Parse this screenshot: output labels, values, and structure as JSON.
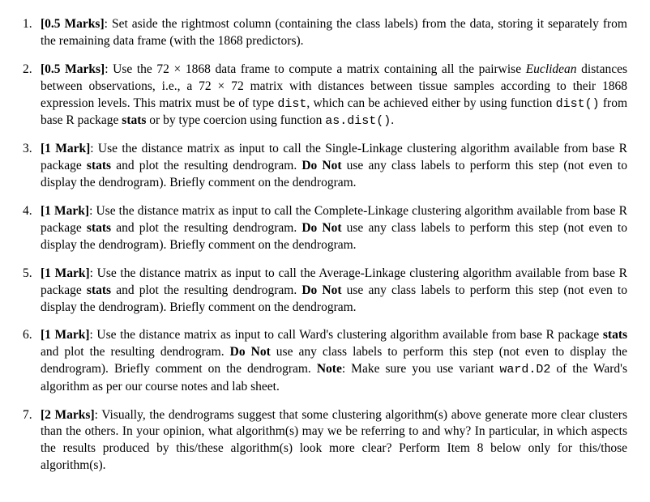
{
  "items": [
    {
      "marks": "[0.5 Marks]",
      "body": ": Set aside the rightmost column (containing the class labels) from the data, storing it separately from the remaining data frame (with the 1868 predictors)."
    },
    {
      "marks": "[0.5 Marks]",
      "pre": ": Use the 72 × 1868 data frame to compute a matrix containing all the pairwise ",
      "ital": "Euclidean",
      "mid": " distances between observations, i.e., a 72 × 72 matrix with distances between tissue samples according to their 1868 expression levels. This matrix must be of type ",
      "tt1": "dist",
      "mid2": ", which can be achieved either by using function ",
      "tt2": "dist()",
      "mid3": " from base R package ",
      "pkg": "stats",
      "mid4": " or by type coercion using function ",
      "tt3": "as.dist()",
      "end": "."
    },
    {
      "marks": "[1 Mark]",
      "pre": ": Use the distance matrix as input to call the Single-Linkage clustering algorithm available from base R package ",
      "pkg": "stats",
      "mid": " and plot the resulting dendrogram. ",
      "donot": "Do Not",
      "end": " use any class labels to perform this step (not even to display the dendrogram). Briefly comment on the dendrogram."
    },
    {
      "marks": "[1 Mark]",
      "pre": ": Use the distance matrix as input to call the Complete-Linkage clustering algorithm available from base R package ",
      "pkg": "stats",
      "mid": " and plot the resulting dendrogram. ",
      "donot": "Do Not",
      "end": " use any class labels to perform this step (not even to display the dendrogram). Briefly comment on the dendrogram."
    },
    {
      "marks": "[1 Mark]",
      "pre": ": Use the distance matrix as input to call the Average-Linkage clustering algorithm available from base R package ",
      "pkg": "stats",
      "mid": " and plot the resulting dendrogram. ",
      "donot": "Do Not",
      "end": " use any class labels to perform this step (not even to display the dendrogram). Briefly comment on the dendrogram."
    },
    {
      "marks": "[1 Mark]",
      "pre": ": Use the distance matrix as input to call Ward's clustering algorithm available from base R package ",
      "pkg": "stats",
      "mid": " and plot the resulting dendrogram. ",
      "donot": "Do Not",
      "mid2": " use any class labels to perform this step (not even to display the dendrogram). Briefly comment on the dendrogram. ",
      "note": "Note",
      "mid3": ": Make sure you use variant ",
      "tt1": "ward.D2",
      "end": " of the Ward's algorithm as per our course notes and lab sheet."
    },
    {
      "marks": "[2 Marks]",
      "body": ": Visually, the dendrograms suggest that some clustering algorithm(s) above generate more clear clusters than the others. In your opinion, what algorithm(s) may we be referring to and why? In particular, in which aspects the results produced by this/these algorithm(s) look more clear? Perform Item 8 below only for this/those algorithm(s)."
    }
  ]
}
